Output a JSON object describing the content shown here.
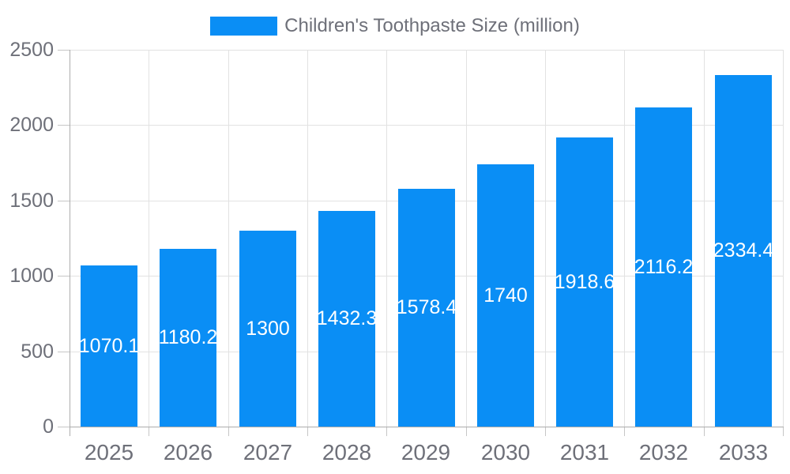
{
  "legend": {
    "label": "Children's Toothpaste Size (million)"
  },
  "colors": {
    "bar": "#0a8ef5",
    "grid": "#e2e2e2",
    "axis": "#adadad",
    "tick": "#c6c6c6",
    "axis_text": "#6e7079",
    "value_text": "#ffffff"
  },
  "chart_data": {
    "type": "bar",
    "title": "Children's Toothpaste Size (million)",
    "series_name": "Children's Toothpaste Size (million)",
    "categories": [
      "2025",
      "2026",
      "2027",
      "2028",
      "2029",
      "2030",
      "2031",
      "2032",
      "2033"
    ],
    "values": [
      1070.1,
      1180.2,
      1300,
      1432.3,
      1578.4,
      1740,
      1918.6,
      2116.2,
      2334.4
    ],
    "value_labels": [
      "1070.1",
      "1180.2",
      "1300",
      "1432.3",
      "1578.4",
      "1740",
      "1918.6",
      "2116.2",
      "2334.4"
    ],
    "xlabel": "",
    "ylabel": "",
    "ylim": [
      0,
      2500
    ],
    "yticks": [
      0,
      500,
      1000,
      1500,
      2000,
      2500
    ],
    "grid": true,
    "legend_position": "top-center",
    "value_label_position": "inside-center",
    "bar_color": "#0a8ef5"
  }
}
